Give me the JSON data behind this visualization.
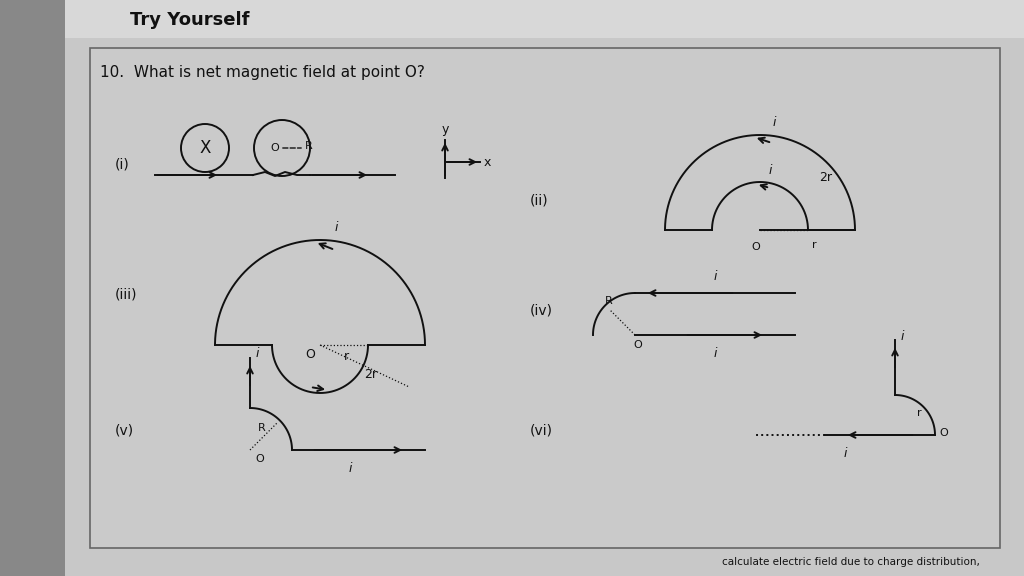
{
  "title": "Try Yourself",
  "question": "10.  What is net magnetic field at point O?",
  "text_color": "#111111",
  "title_fontsize": 13,
  "question_fontsize": 11,
  "label_fontsize": 10,
  "small_fontsize": 9,
  "bottom_text": "calculate electric field due to charge distribution,"
}
